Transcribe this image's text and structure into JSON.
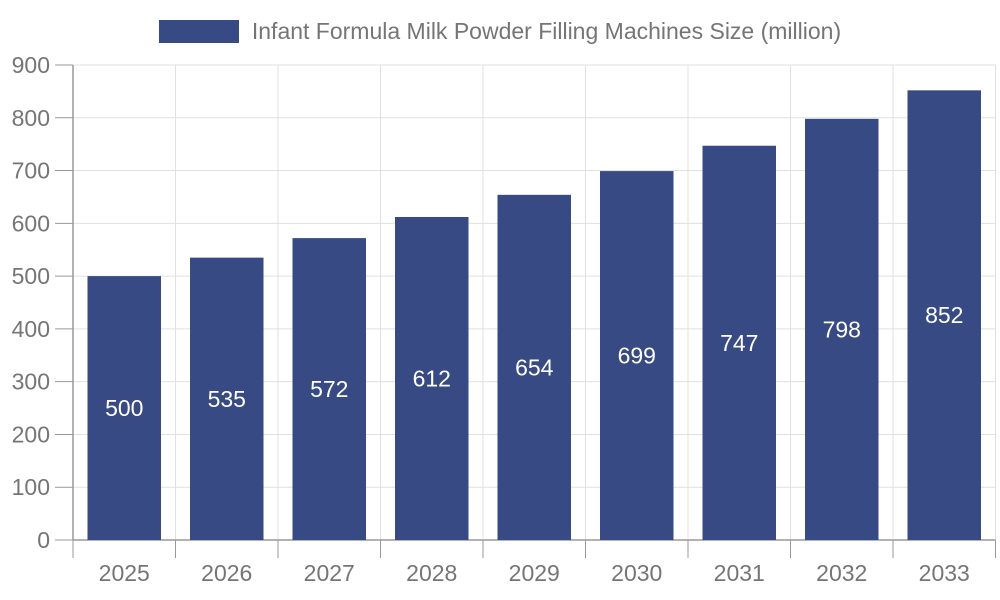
{
  "colors": {
    "bar": "#374A83",
    "axis_line": "#999999",
    "gridline": "#E0E0E0",
    "tick_label": "#757575",
    "legend_text": "#757575",
    "value_label": "#FFFFFF",
    "background": "#FFFFFF"
  },
  "chart_data": {
    "type": "bar",
    "title": "Infant Formula Milk Powder Filling Machines Size (million)",
    "xlabel": "",
    "ylabel": "",
    "categories": [
      "2025",
      "2026",
      "2027",
      "2028",
      "2029",
      "2030",
      "2031",
      "2032",
      "2033"
    ],
    "values": [
      500,
      535,
      572,
      612,
      654,
      699,
      747,
      798,
      852
    ],
    "value_labels": [
      "500",
      "535",
      "572",
      "612",
      "654",
      "699",
      "747",
      "798",
      "852"
    ],
    "ylim": [
      0,
      900
    ],
    "yticks": [
      0,
      100,
      200,
      300,
      400,
      500,
      600,
      700,
      800,
      900
    ],
    "grid": true,
    "legend_position": "top"
  }
}
